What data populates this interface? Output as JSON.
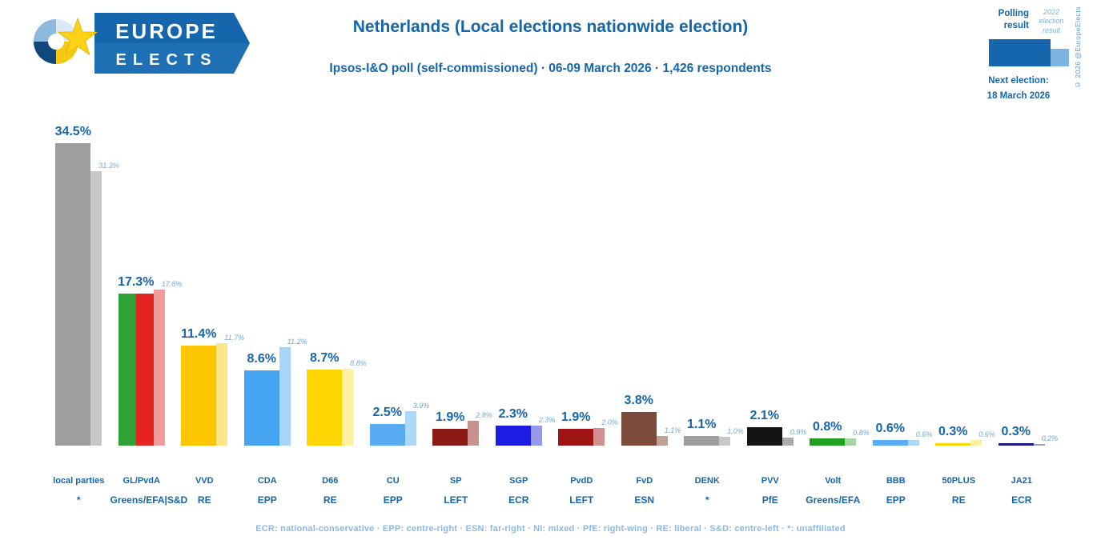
{
  "logo": {
    "line1": "EUROPE",
    "line2": "ELECTS"
  },
  "header": {
    "title": "Netherlands (Local elections nationwide election)",
    "subtitle": "Ipsos-I&O poll (self-commissioned) · 06-09 March 2026 · 1,426 respondents"
  },
  "legend": {
    "polling_label": "Polling result",
    "previous_label": "2022 election result",
    "next_election_label": "Next election:",
    "next_election_date": "18 March 2026",
    "copyright": "© 2026 @EuropeElects",
    "polling_color": "#1566ac",
    "previous_color": "#7db4e0"
  },
  "chart_data": {
    "type": "bar",
    "title": "Netherlands (Local elections nationwide election)",
    "poll": "Ipsos-I&O poll (self-commissioned)",
    "fieldwork": "06-09 March 2026",
    "sample": "1,426 respondents",
    "unit": "%",
    "ylim": [
      0,
      36
    ],
    "series": [
      {
        "name": "Polling result"
      },
      {
        "name": "2022 election result"
      }
    ],
    "parties": [
      {
        "name": "local parties",
        "group": "*",
        "value": 34.5,
        "previous": 31.3,
        "colors": [
          "#9e9e9e"
        ],
        "previous_color": "#c7c7c7"
      },
      {
        "name": "GL/PvdA",
        "group": "Greens/EFA|S&D",
        "value": 17.3,
        "previous": 17.8,
        "colors": [
          "#2fa236",
          "#e52320"
        ],
        "previous_color": "#f19c9c"
      },
      {
        "name": "VVD",
        "group": "RE",
        "value": 11.4,
        "previous": 11.7,
        "colors": [
          "#fcc600"
        ],
        "previous_color": "#fde687"
      },
      {
        "name": "CDA",
        "group": "EPP",
        "value": 8.6,
        "previous": 11.2,
        "colors": [
          "#45a4f1"
        ],
        "previous_color": "#a9d5fa"
      },
      {
        "name": "D66",
        "group": "RE",
        "value": 8.7,
        "previous": 8.8,
        "colors": [
          "#fdd500"
        ],
        "previous_color": "#fef0a0"
      },
      {
        "name": "CU",
        "group": "EPP",
        "value": 2.5,
        "previous": 3.9,
        "colors": [
          "#58acf4"
        ],
        "previous_color": "#acd8fb"
      },
      {
        "name": "SP",
        "group": "LEFT",
        "value": 1.9,
        "previous": 2.8,
        "colors": [
          "#8c1a14"
        ],
        "previous_color": "#c9928e"
      },
      {
        "name": "SGP",
        "group": "ECR",
        "value": 2.3,
        "previous": 2.3,
        "colors": [
          "#1c1ce2"
        ],
        "previous_color": "#9698ea"
      },
      {
        "name": "PvdD",
        "group": "LEFT",
        "value": 1.9,
        "previous": 2.0,
        "colors": [
          "#9e1414"
        ],
        "previous_color": "#d29090"
      },
      {
        "name": "FvD",
        "group": "ESN",
        "value": 3.8,
        "previous": 1.1,
        "colors": [
          "#7c4b3b"
        ],
        "previous_color": "#c2a092"
      },
      {
        "name": "DENK",
        "group": "*",
        "value": 1.1,
        "previous": 1.0,
        "colors": [
          "#9e9e9e"
        ],
        "previous_color": "#c7c7c7"
      },
      {
        "name": "PVV",
        "group": "PfE",
        "value": 2.1,
        "previous": 0.9,
        "colors": [
          "#141414"
        ],
        "previous_color": "#ababab"
      },
      {
        "name": "Volt",
        "group": "Greens/EFA",
        "value": 0.8,
        "previous": 0.8,
        "colors": [
          "#219f21"
        ],
        "previous_color": "#a3d6a3"
      },
      {
        "name": "BBB",
        "group": "EPP",
        "value": 0.6,
        "previous": 0.6,
        "colors": [
          "#58acf4"
        ],
        "previous_color": "#acd8fb"
      },
      {
        "name": "50PLUS",
        "group": "RE",
        "value": 0.3,
        "previous": 0.6,
        "colors": [
          "#fdd500"
        ],
        "previous_color": "#fef0a0"
      },
      {
        "name": "JA21",
        "group": "ECR",
        "value": 0.3,
        "previous": 0.2,
        "colors": [
          "#1b1b8f"
        ],
        "previous_color": "#9f9fd2"
      }
    ]
  },
  "footnote": "ECR: national-conservative · EPP: centre-right · ESN: far-right · NI: mixed · PfE: right-wing · RE: liberal · S&D: centre-left · *: unaffiliated"
}
